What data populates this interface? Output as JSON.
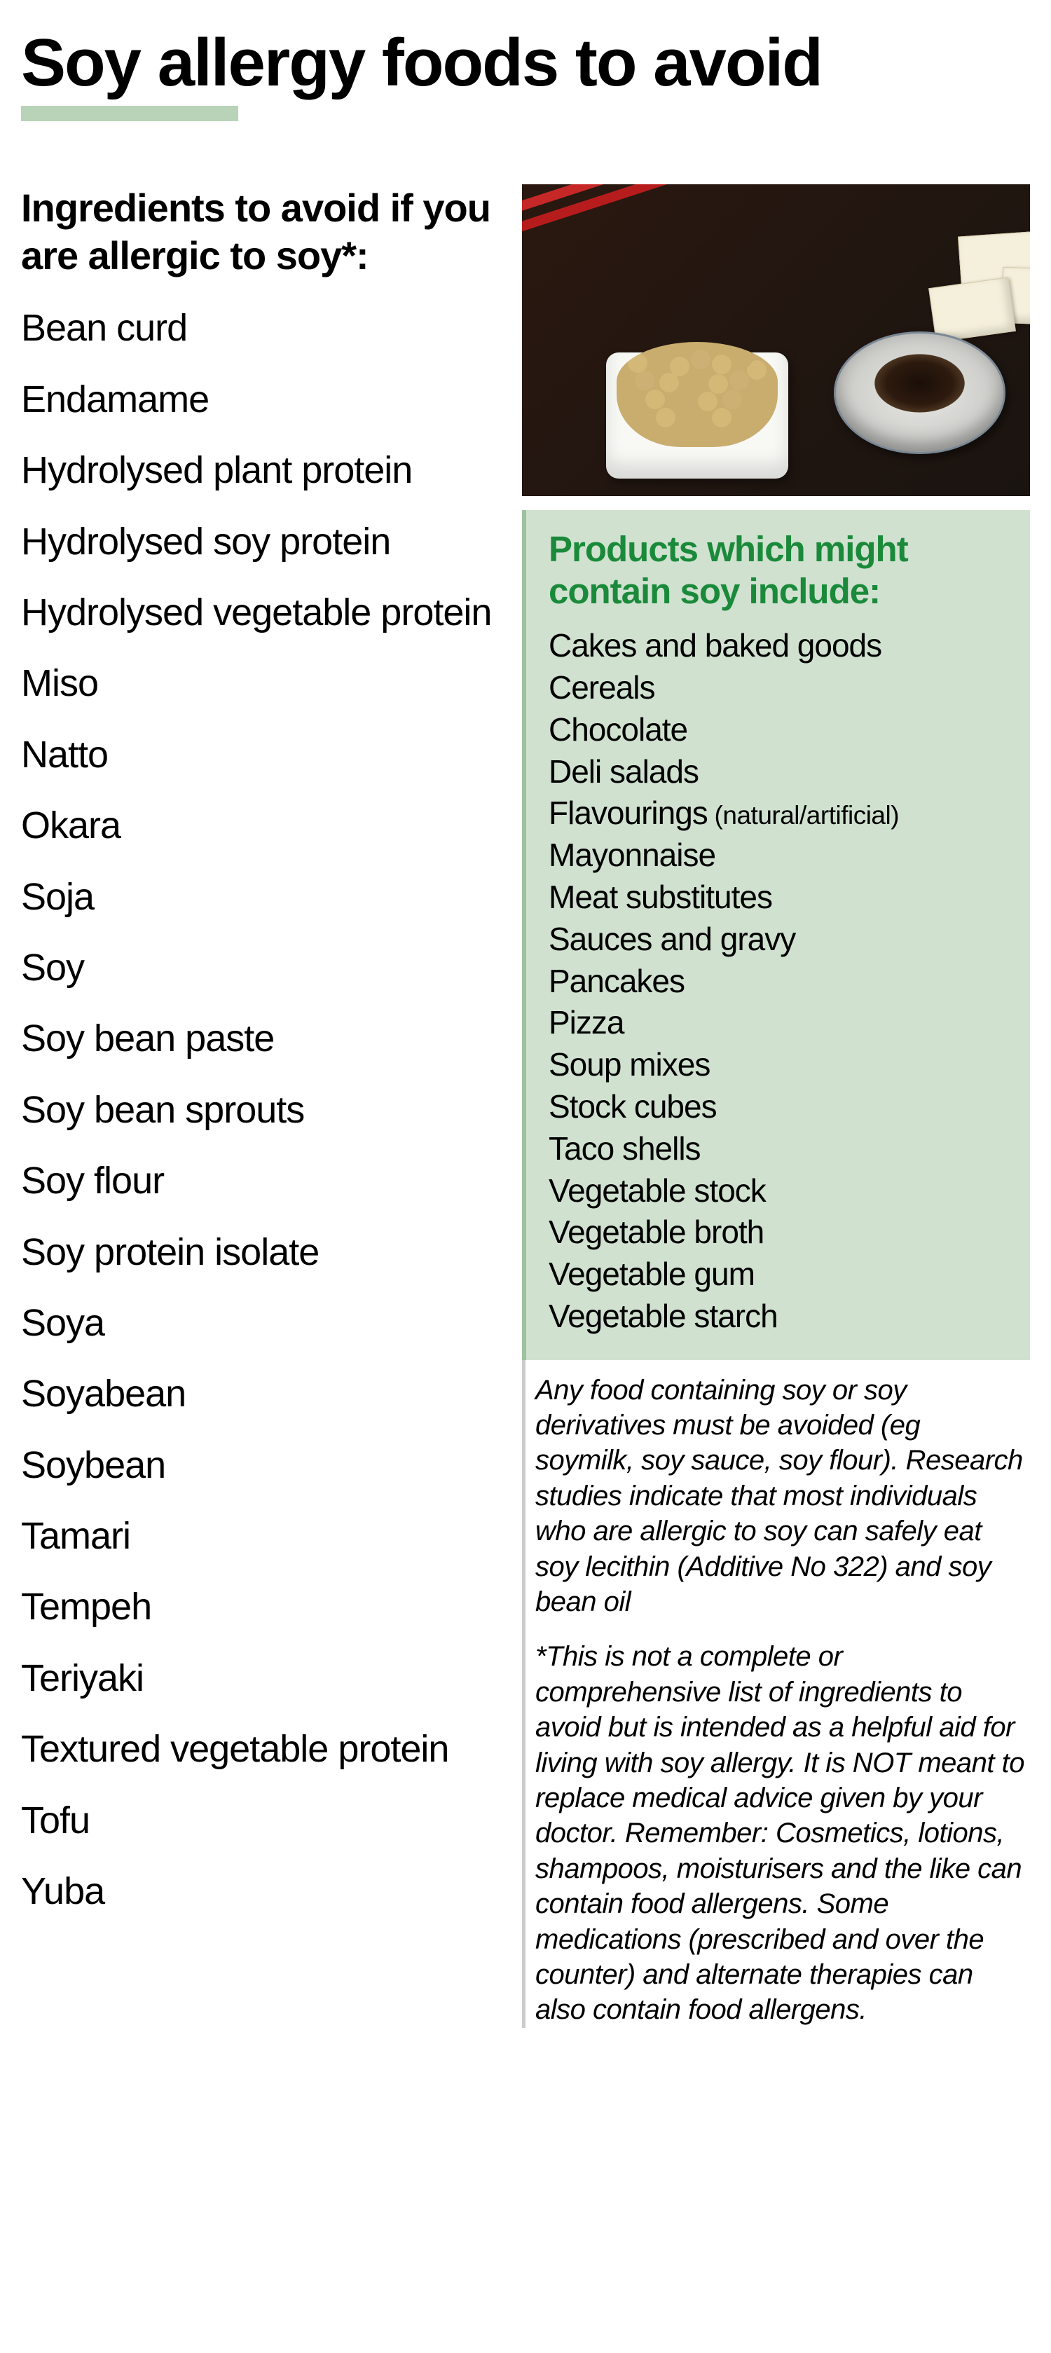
{
  "title": "Soy allergy foods to avoid",
  "colors": {
    "accent_bar": "#b9d3b9",
    "products_bg": "#d0e1d0",
    "products_border": "#9fc19f",
    "products_heading": "#1a8a3a",
    "footnote_border": "#cccccc",
    "text": "#000000",
    "background": "#ffffff"
  },
  "ingredients": {
    "heading": "Ingredients to avoid if you are allergic to soy*:",
    "items": [
      "Bean curd",
      "Endamame",
      "Hydrolysed plant protein",
      "Hydrolysed soy protein",
      "Hydrolysed vegetable protein",
      "Miso",
      "Natto",
      "Okara",
      "Soja",
      "Soy",
      "Soy bean paste",
      "Soy bean sprouts",
      "Soy flour",
      "Soy protein isolate",
      "Soya",
      "Soyabean",
      "Soybean",
      "Tamari",
      "Tempeh",
      "Teriyaki",
      "Textured vegetable protein",
      "Tofu",
      "Yuba"
    ]
  },
  "products": {
    "heading": "Products which might contain soy include:",
    "items": [
      "Cakes and baked goods",
      "Cereals",
      "Chocolate",
      "Deli salads",
      "Flavourings",
      "Mayonnaise",
      "Meat substitutes",
      "Sauces and gravy",
      "Pancakes",
      "Pizza",
      "Soup mixes",
      "Stock cubes",
      "Taco shells",
      "Vegetable stock",
      "Vegetable broth",
      "Vegetable gum",
      "Vegetable starch"
    ],
    "flavourings_note": "(natural/artificial)"
  },
  "footnotes": {
    "para1": "Any food containing soy or soy derivatives must be avoided (eg soymilk, soy sauce, soy flour). Research studies indicate that most individuals who are allergic to soy can safely eat soy lecithin (Additive No 322) and soy bean oil",
    "para2": "*This is not a complete or comprehensive list of ingredients to avoid but is intended as a helpful aid for living with soy allergy. It is NOT meant to replace medical advice given by your doctor. Remember: Cosmetics, lotions, shampoos, moisturisers and the like can contain food allergens. Some medications (prescribed and over the counter) and alternate therapies can also contain food allergens."
  }
}
